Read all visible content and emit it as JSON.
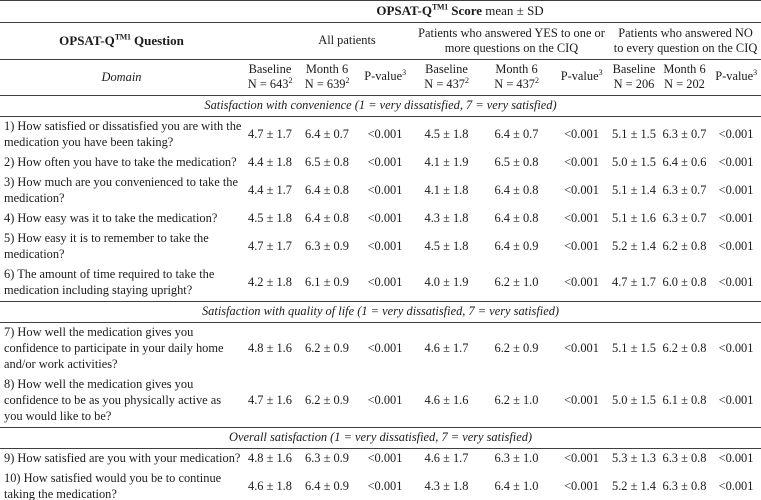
{
  "colors": {
    "text": "#1b1b1b",
    "rule": "#3f3f3f",
    "background": "#ffffff"
  },
  "header": {
    "score": {
      "brand": "OPSAT-Q",
      "brand_sup": "TM1",
      "bold_rest": " Score",
      "normal_rest": " mean ± SD"
    },
    "question": {
      "brand": "OPSAT-Q",
      "sup": "TM1",
      "rest": " Question"
    },
    "groups": [
      {
        "label": "All patients"
      },
      {
        "label": "Patients who answered YES to one or more questions on the CIQ"
      },
      {
        "label": "Patients who answered NO to every question on the CIQ"
      }
    ],
    "domain_label": "Domain",
    "columns": [
      {
        "line1": "Baseline",
        "line2": "N = 643",
        "sup": "2"
      },
      {
        "line1": "Month 6",
        "line2": "N = 639",
        "sup": "2"
      },
      {
        "line1": "P-value",
        "line2": null,
        "sup": "3"
      },
      {
        "line1": "Baseline",
        "line2": "N = 437",
        "sup": "2"
      },
      {
        "line1": "Month 6",
        "line2": "N = 437",
        "sup": "2"
      },
      {
        "line1": "P-value",
        "line2": null,
        "sup": "3"
      },
      {
        "line1": "Baseline",
        "line2": "N = 206",
        "sup": ""
      },
      {
        "line1": "Month 6",
        "line2": "N = 202",
        "sup": ""
      },
      {
        "line1": "P-value",
        "line2": null,
        "sup": "3"
      }
    ]
  },
  "sections": [
    {
      "label": "Satisfaction with convenience (1 = very dissatisfied, 7 = very satisfied)",
      "rows": [
        {
          "question": "1) How satisfied or dissatisfied you are with the medication you have been taking?",
          "values": [
            "4.7 ± 1.7",
            "6.4 ± 0.7",
            "<0.001",
            "4.5 ± 1.8",
            "6.4 ± 0.7",
            "<0.001",
            "5.1 ± 1.5",
            "6.3 ± 0.7",
            "<0.001"
          ]
        },
        {
          "question": "2) How often you have to take the medication?",
          "values": [
            "4.4 ± 1.8",
            "6.5 ± 0.8",
            "<0.001",
            "4.1 ± 1.9",
            "6.5 ± 0.8",
            "<0.001",
            "5.0 ± 1.5",
            "6.4 ± 0.6",
            "<0.001"
          ]
        },
        {
          "question": "3) How much are you convenienced to take the medication?",
          "values": [
            "4.4 ± 1.7",
            "6.4 ± 0.8",
            "<0.001",
            "4.1 ± 1.8",
            "6.4 ± 0.8",
            "<0.001",
            "5.1 ± 1.4",
            "6.3 ± 0.7",
            "<0.001"
          ]
        },
        {
          "question": "4) How easy was it to take the medication?",
          "values": [
            "4.5 ± 1.8",
            "6.4 ± 0.8",
            "<0.001",
            "4.3 ± 1.8",
            "6.4 ± 0.8",
            "<0.001",
            "5.1 ± 1.6",
            "6.3 ± 0.7",
            "<0.001"
          ]
        },
        {
          "question": "5) How easy it is to remember to take the medication?",
          "values": [
            "4.7 ± 1.7",
            "6.3 ± 0.9",
            "<0.001",
            "4.5 ± 1.8",
            "6.4 ± 0.9",
            "<0.001",
            "5.2 ± 1.4",
            "6.2 ± 0.8",
            "<0.001"
          ]
        },
        {
          "question": "6) The amount of time required to take the medication including staying upright?",
          "values": [
            "4.2 ± 1.8",
            "6.1 ± 0.9",
            "<0.001",
            "4.0 ± 1.9",
            "6.2 ± 1.0",
            "<0.001",
            "4.7 ± 1.7",
            "6.0 ± 0.8",
            "<0.001"
          ]
        }
      ]
    },
    {
      "label": "Satisfaction with quality of life (1 = very dissatisfied, 7 = very satisfied)",
      "rows": [
        {
          "question": "7) How well the medication gives you confidence to participate in your daily home and/or work activities?",
          "values": [
            "4.8 ± 1.6",
            "6.2 ± 0.9",
            "<0.001",
            "4.6 ± 1.7",
            "6.2 ± 0.9",
            "<0.001",
            "5.1 ± 1.5",
            "6.2 ± 0.8",
            "<0.001"
          ]
        },
        {
          "question": "8) How well the medication gives you confidence to be as you physically active as you would like to be?",
          "values": [
            "4.7 ± 1.6",
            "6.2 ± 0.9",
            "<0.001",
            "4.6 ± 1.6",
            "6.2 ± 1.0",
            "<0.001",
            "5.0 ± 1.5",
            "6.1 ± 0.8",
            "<0.001"
          ]
        }
      ]
    },
    {
      "label": "Overall satisfaction (1 = very dissatisfied, 7 = very satisfied)",
      "rows": [
        {
          "question": "9) How satisfied are you with your medication?",
          "values": [
            "4.8 ± 1.6",
            "6.3 ± 0.9",
            "<0.001",
            "4.6 ± 1.7",
            "6.3 ± 1.0",
            "<0.001",
            "5.3 ± 1.3",
            "6.3 ± 0.8",
            "<0.001"
          ]
        },
        {
          "question": "10) How satisfied would you be to continue taking the medication?",
          "values": [
            "4.6 ± 1.8",
            "6.4 ± 0.9",
            "<0.001",
            "4.3 ± 1.8",
            "6.4 ± 1.0",
            "<0.001",
            "5.2 ± 1.4",
            "6.3 ± 0.8",
            "<0.001"
          ]
        }
      ]
    }
  ]
}
